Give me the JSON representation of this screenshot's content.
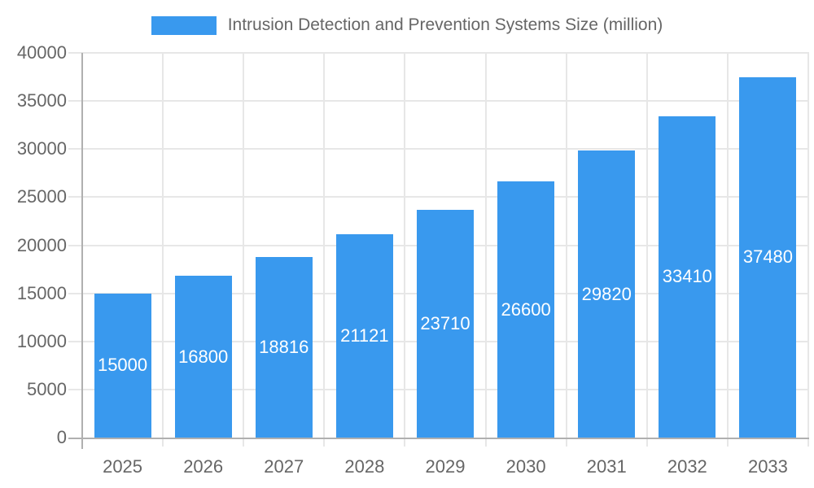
{
  "legend": {
    "label": "Intrusion Detection and Prevention Systems Size (million)"
  },
  "chart_data": {
    "type": "bar",
    "title": "",
    "xlabel": "",
    "ylabel": "",
    "categories": [
      "2025",
      "2026",
      "2027",
      "2028",
      "2029",
      "2030",
      "2031",
      "2032",
      "2033"
    ],
    "series": [
      {
        "name": "Intrusion Detection and Prevention Systems Size (million)",
        "values": [
          15000,
          16800,
          18816,
          21121,
          23710,
          26600,
          29820,
          33410,
          37480
        ]
      }
    ],
    "value_labels_shown": true,
    "ylim": [
      0,
      40000
    ],
    "yticks": [
      0,
      5000,
      10000,
      15000,
      20000,
      25000,
      30000,
      35000,
      40000
    ],
    "grid": true,
    "legend_position": "top",
    "colors": {
      "bar": "#3999EE",
      "value_label": "#ffffff",
      "grid": "#e7e7e7",
      "axis_line": "#b0b0b0",
      "axis_text": "#666666",
      "background": "#ffffff"
    }
  }
}
